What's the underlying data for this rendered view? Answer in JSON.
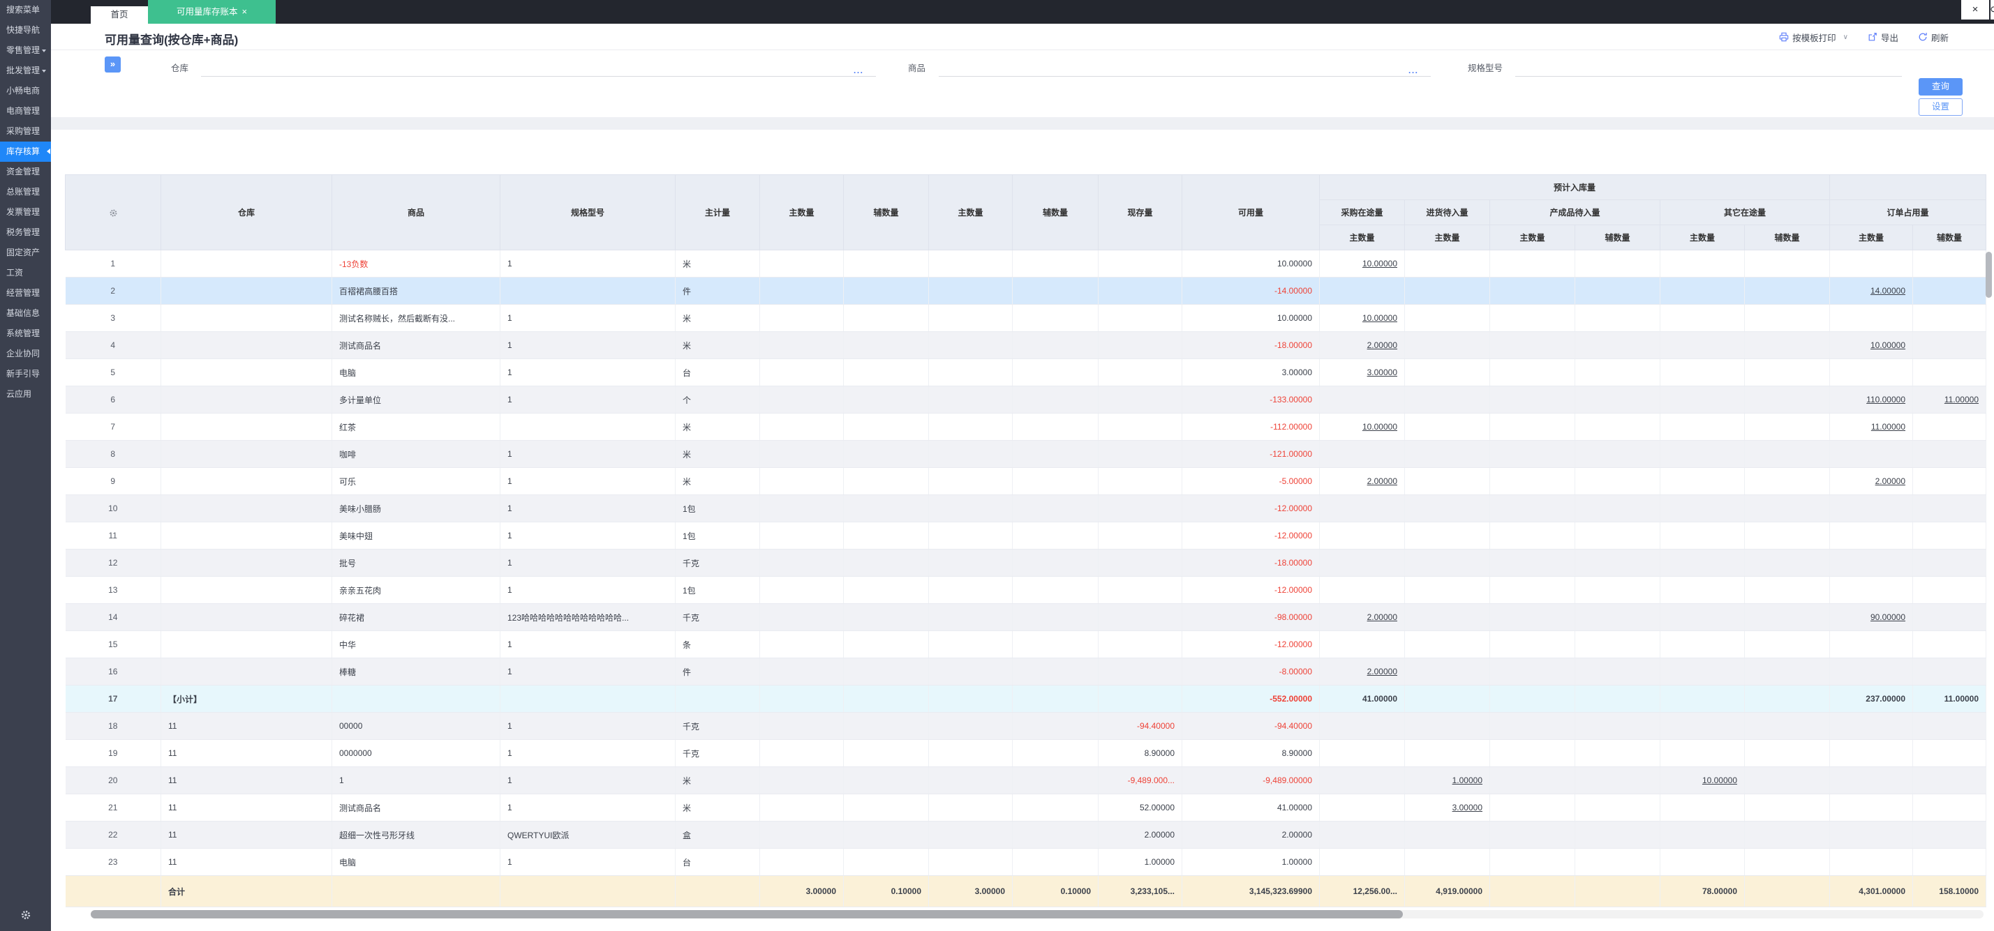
{
  "sidebar": {
    "items": [
      {
        "label": "搜索菜单"
      },
      {
        "label": "快捷导航"
      },
      {
        "label": "零售管理",
        "caret": true
      },
      {
        "label": "批发管理",
        "caret": true
      },
      {
        "label": "小畅电商"
      },
      {
        "label": "电商管理"
      },
      {
        "label": "采购管理"
      },
      {
        "label": "库存核算",
        "active": true
      },
      {
        "label": "资金管理"
      },
      {
        "label": "总账管理"
      },
      {
        "label": "发票管理"
      },
      {
        "label": "税务管理"
      },
      {
        "label": "固定资产"
      },
      {
        "label": "工资"
      },
      {
        "label": "经营管理"
      },
      {
        "label": "基础信息"
      },
      {
        "label": "系统管理"
      },
      {
        "label": "企业协同"
      },
      {
        "label": "新手引导"
      },
      {
        "label": "云应用"
      }
    ]
  },
  "tabs": {
    "home": "首页",
    "active": "可用量库存账本",
    "close": "×"
  },
  "window": {
    "close": "×"
  },
  "page": {
    "title": "可用量查询(按仓库+商品)"
  },
  "toolbar": {
    "print": "按模板打印",
    "caret": "∨",
    "export": "导出",
    "refresh": "刷新"
  },
  "filters": {
    "warehouse_label": "仓库",
    "product_label": "商品",
    "spec_label": "规格型号",
    "query_button": "查询",
    "settings_button": "设置",
    "collapse_button": "»",
    "ellipsis": "..."
  },
  "table": {
    "headers": {
      "warehouse": "仓库",
      "product": "商品",
      "spec": "规格型号",
      "unit": "主计量",
      "main_qty": "主数量",
      "aux_qty": "辅数量",
      "stock": "现存量",
      "available": "可用量",
      "expected_in": "预计入库量",
      "purchase_transit": "采购在途量",
      "incoming_pending": "进货待入量",
      "finished_pending": "产成品待入量",
      "other_transit": "其它在途量",
      "order_occupied": "订单占用量"
    },
    "rows": [
      {
        "no": "1",
        "product": {
          "v": "-13负数",
          "red": true
        },
        "spec": "1",
        "unit": "米",
        "avail": "10.00000",
        "purch": {
          "v": "10.00000",
          "link": true
        }
      },
      {
        "no": "2",
        "cls": "selected",
        "product": "百褶裙高腰百搭",
        "unit": "件",
        "avail": {
          "v": "-14.00000",
          "red": true
        },
        "ord_m": {
          "v": "14.00000",
          "link": true
        }
      },
      {
        "no": "3",
        "product": "测试名称贼长，然后截断有没...",
        "spec": "1",
        "unit": "米",
        "avail": "10.00000",
        "purch": {
          "v": "10.00000",
          "link": true
        }
      },
      {
        "no": "4",
        "product": "测试商品名",
        "spec": "1",
        "unit": "米",
        "avail": {
          "v": "-18.00000",
          "red": true
        },
        "purch": {
          "v": "2.00000",
          "link": true
        },
        "ord_m": {
          "v": "10.00000",
          "link": true
        }
      },
      {
        "no": "5",
        "product": "电脑",
        "spec": "1",
        "unit": "台",
        "avail": "3.00000",
        "purch": {
          "v": "3.00000",
          "link": true
        }
      },
      {
        "no": "6",
        "product": "多计量单位",
        "spec": "1",
        "unit": "个",
        "avail": {
          "v": "-133.00000",
          "red": true
        },
        "ord_m": {
          "v": "110.00000",
          "link": true
        },
        "ord_a": {
          "v": "11.00000",
          "link": true
        }
      },
      {
        "no": "7",
        "product": "红茶",
        "unit": "米",
        "avail": {
          "v": "-112.00000",
          "red": true
        },
        "purch": {
          "v": "10.00000",
          "link": true
        },
        "ord_m": {
          "v": "11.00000",
          "link": true
        }
      },
      {
        "no": "8",
        "product": "咖啡",
        "spec": "1",
        "unit": "米",
        "avail": {
          "v": "-121.00000",
          "red": true
        }
      },
      {
        "no": "9",
        "product": "可乐",
        "spec": "1",
        "unit": "米",
        "avail": {
          "v": "-5.00000",
          "red": true
        },
        "purch": {
          "v": "2.00000",
          "link": true
        },
        "ord_m": {
          "v": "2.00000",
          "link": true
        }
      },
      {
        "no": "10",
        "product": "美味小腊肠",
        "spec": "1",
        "unit": "1包",
        "avail": {
          "v": "-12.00000",
          "red": true
        }
      },
      {
        "no": "11",
        "product": "美味中翅",
        "spec": "1",
        "unit": "1包",
        "avail": {
          "v": "-12.00000",
          "red": true
        }
      },
      {
        "no": "12",
        "product": "批号",
        "spec": "1",
        "unit": "千克",
        "avail": {
          "v": "-18.00000",
          "red": true
        }
      },
      {
        "no": "13",
        "product": "亲亲五花肉",
        "spec": "1",
        "unit": "1包",
        "avail": {
          "v": "-12.00000",
          "red": true
        }
      },
      {
        "no": "14",
        "product": "碎花裙",
        "spec": "123哈哈哈哈哈哈哈哈哈哈哈哈...",
        "unit": "千克",
        "avail": {
          "v": "-98.00000",
          "red": true
        },
        "purch": {
          "v": "2.00000",
          "link": true
        },
        "ord_m": {
          "v": "90.00000",
          "link": true
        }
      },
      {
        "no": "15",
        "product": "中华",
        "spec": "1",
        "unit": "条",
        "avail": {
          "v": "-12.00000",
          "red": true
        }
      },
      {
        "no": "16",
        "product": "棒糖",
        "spec": "1",
        "unit": "件",
        "avail": {
          "v": "-8.00000",
          "red": true
        },
        "purch": {
          "v": "2.00000",
          "link": true
        }
      },
      {
        "no": "17",
        "cls": "subtotal",
        "warehouse": "【小计】",
        "avail": {
          "v": "-552.00000",
          "red": true
        },
        "purch": "41.00000",
        "ord_m": "237.00000",
        "ord_a": "11.00000"
      },
      {
        "no": "18",
        "warehouse": "11",
        "product": "00000",
        "spec": "1",
        "unit": "千克",
        "stock": {
          "v": "-94.40000",
          "red": true
        },
        "avail": {
          "v": "-94.40000",
          "red": true
        }
      },
      {
        "no": "19",
        "warehouse": "11",
        "product": "0000000",
        "spec": "1",
        "unit": "千克",
        "stock": "8.90000",
        "avail": "8.90000"
      },
      {
        "no": "20",
        "warehouse": "11",
        "product": "1",
        "spec": "1",
        "unit": "米",
        "stock": {
          "v": "-9,489.000...",
          "red": true
        },
        "avail": {
          "v": "-9,489.00000",
          "red": true
        },
        "incoming": {
          "v": "1.00000",
          "link": true
        },
        "oth_m": {
          "v": "10.00000",
          "link": true
        }
      },
      {
        "no": "21",
        "warehouse": "11",
        "product": "测试商品名",
        "spec": "1",
        "unit": "米",
        "stock": "52.00000",
        "avail": "41.00000",
        "incoming": {
          "v": "3.00000",
          "link": true
        }
      },
      {
        "no": "22",
        "warehouse": "11",
        "product": "超细一次性弓形牙线",
        "spec": "QWERTYUI欧派",
        "unit": "盒",
        "stock": "2.00000",
        "avail": "2.00000"
      },
      {
        "no": "23",
        "warehouse": "11",
        "product": "电脑",
        "spec": "1",
        "unit": "台",
        "stock": "1.00000",
        "avail": "1.00000"
      }
    ],
    "total": {
      "warehouse": "合计",
      "m1": "3.00000",
      "a1": "0.10000",
      "m2": "3.00000",
      "a2": "0.10000",
      "stock": "3,233,105...",
      "avail": "3,145,323.69900",
      "purch": "12,256.00...",
      "incoming": "4,919.00000",
      "oth_m": "78.00000",
      "ord_m": "4,301.00000",
      "ord_a": "158.10000"
    }
  },
  "colors": {
    "sidebar_bg": "#3b404e",
    "active_item_blue": "#1f87f8",
    "tab_green": "#3ec08f",
    "topbar_bg": "#23262e",
    "accent_blue": "#5b96f7",
    "negative_red": "#ee4237",
    "selected_row_bg": "#d6e9fc",
    "subtotal_row_bg": "#e7f7fc",
    "total_row_bg": "#fbf1d8",
    "header_bg": "#e9edf4",
    "stripe_bg": "#f1f2f6"
  }
}
